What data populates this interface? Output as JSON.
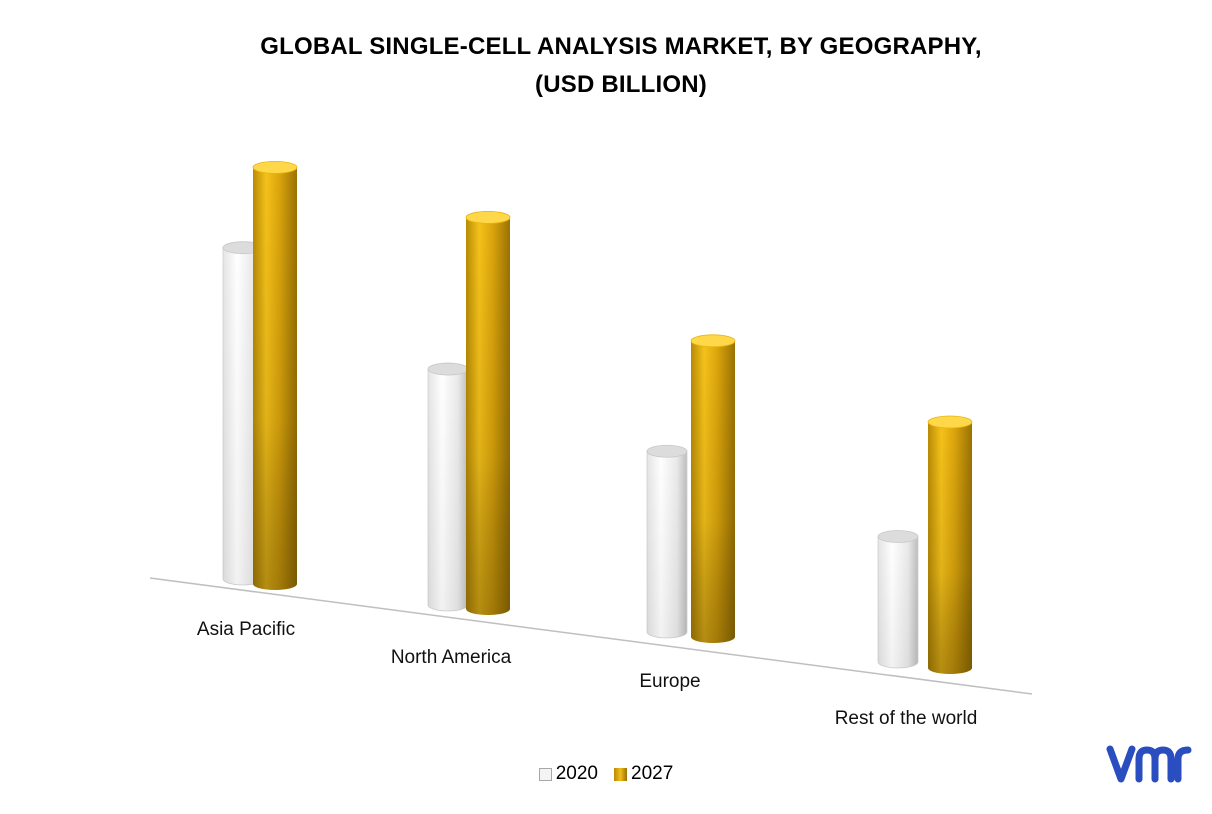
{
  "chart_data": {
    "type": "bar",
    "title_line1": "GLOBAL SINGLE-CELL ANALYSIS MARKET, BY GEOGRAPHY,",
    "title_line2": "(USD BILLION)",
    "categories": [
      "Asia Pacific",
      "North America",
      "Europe",
      "Rest of the world"
    ],
    "series": [
      {
        "name": "2020",
        "values": [
          6.6,
          4.7,
          3.6,
          2.5
        ],
        "color": "#f2f2f2"
      },
      {
        "name": "2027",
        "values": [
          8.3,
          7.8,
          5.9,
          4.9
        ],
        "color": "#d4a017"
      }
    ],
    "ylim": [
      0,
      9
    ],
    "grid": false,
    "legend": "bottom",
    "style": "3d-cylinder"
  },
  "logo": {
    "text": "vmr",
    "color": "#2a4dbf"
  }
}
